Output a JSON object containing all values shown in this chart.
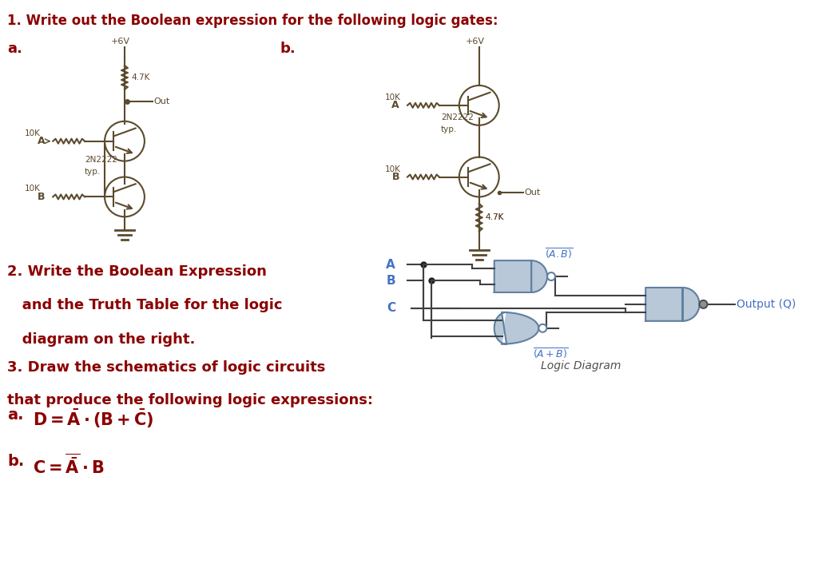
{
  "bg_color": "#ffffff",
  "text_color_dark_red": "#8B0000",
  "text_color_blue": "#4472C4",
  "circuit_color": "#5B4A2D",
  "gate_fill": "#B8C8D8",
  "gate_edge": "#6080A0",
  "q1_title": "1. Write out the Boolean expression for the following logic gates:",
  "q1a_label": "a.",
  "q1b_label": "b.",
  "q2_title": "2. Write the Boolean Expression",
  "q2_line2": "   and the Truth Table for the logic",
  "q2_line3": "   diagram on the right.",
  "q3_title": "3. Draw the schematics of logic circuits",
  "q3_line2": "that produce the following logic expressions:",
  "q3a": "a.",
  "q3b": "b."
}
